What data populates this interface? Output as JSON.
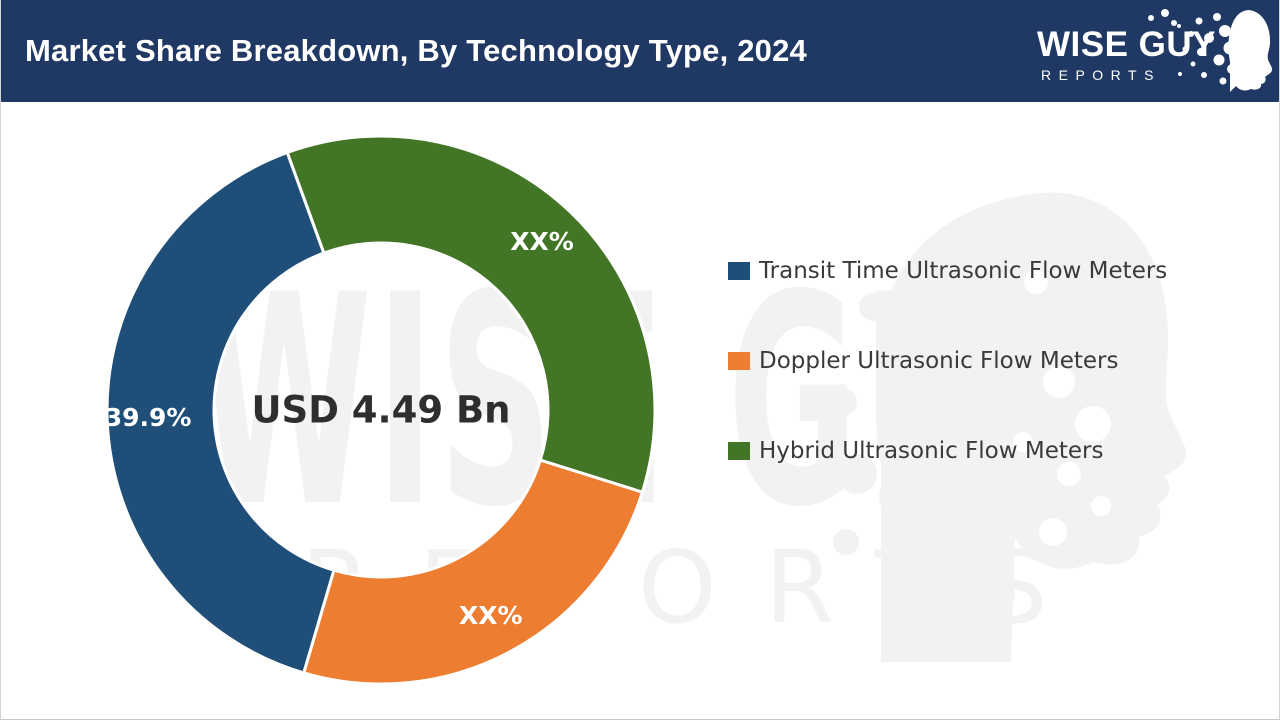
{
  "header": {
    "title": "Market Share Breakdown, By Technology Type, 2024",
    "logo": {
      "brand_line1": "WISE GUY",
      "brand_line2": "REPORTS"
    }
  },
  "chart_data": {
    "type": "pie",
    "subtype": "donut",
    "title": "Market Share Breakdown, By Technology Type, 2024",
    "center_label": "USD 4.49 Bn",
    "start_angle_deg": 110,
    "direction": "counterclockwise",
    "inner_radius_ratio": 0.61,
    "legend_position": "right",
    "segments": [
      {
        "name": "Transit Time Ultrasonic Flow Meters",
        "label": "39.9%",
        "value_pct": 39.9,
        "color": "#1F4E79"
      },
      {
        "name": "Doppler Ultrasonic Flow Meters",
        "label": "XX%",
        "value_pct": 24.7,
        "color": "#ED7D31"
      },
      {
        "name": "Hybrid Ultrasonic Flow Meters",
        "label": "XX%",
        "value_pct": 35.4,
        "color": "#427526"
      }
    ]
  },
  "colors": {
    "header_bg": "#1F3864",
    "legend_text": "#3A3A3A",
    "center_text": "#2E2E2E",
    "watermark": "#F2F2F2"
  }
}
